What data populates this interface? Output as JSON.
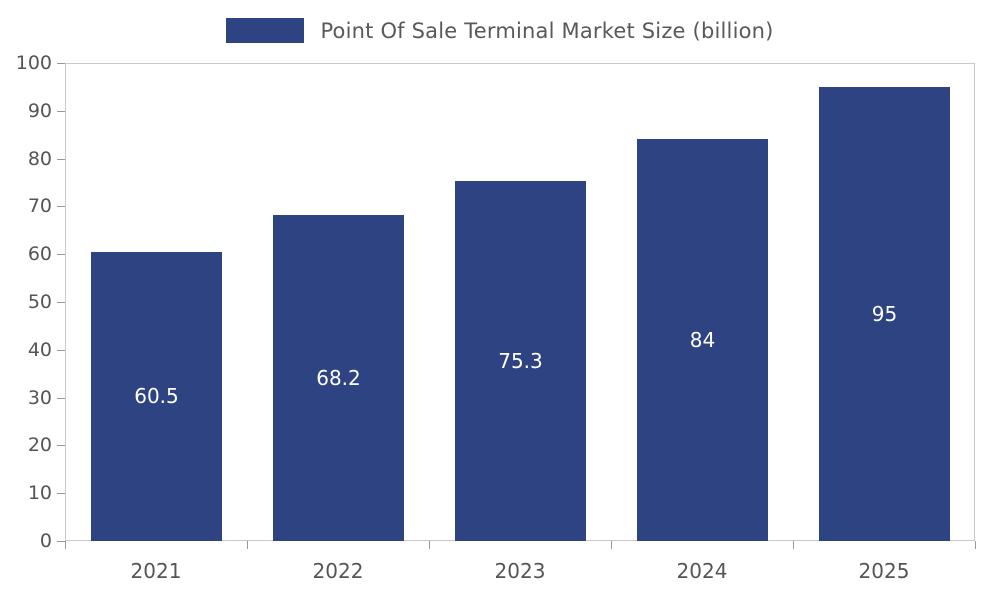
{
  "chart_data": {
    "type": "bar",
    "title": "Point Of Sale Terminal Market Size (billion)",
    "categories": [
      "2021",
      "2022",
      "2023",
      "2024",
      "2025"
    ],
    "values": [
      60.5,
      68.2,
      75.3,
      84,
      95
    ],
    "bar_labels": [
      "60.5",
      "68.2",
      "75.3",
      "84",
      "95"
    ],
    "xlabel": "",
    "ylabel": "",
    "ylim": [
      0,
      100
    ],
    "yticks": [
      0,
      10,
      20,
      30,
      40,
      50,
      60,
      70,
      80,
      90,
      100
    ],
    "grid": false,
    "legend_position": "top-center",
    "colors": {
      "bar": "#2E4482",
      "axis_text": "#555555",
      "bar_label_text": "#ffffff",
      "plot_border": "#c9c9c9",
      "tick": "#999999"
    }
  }
}
